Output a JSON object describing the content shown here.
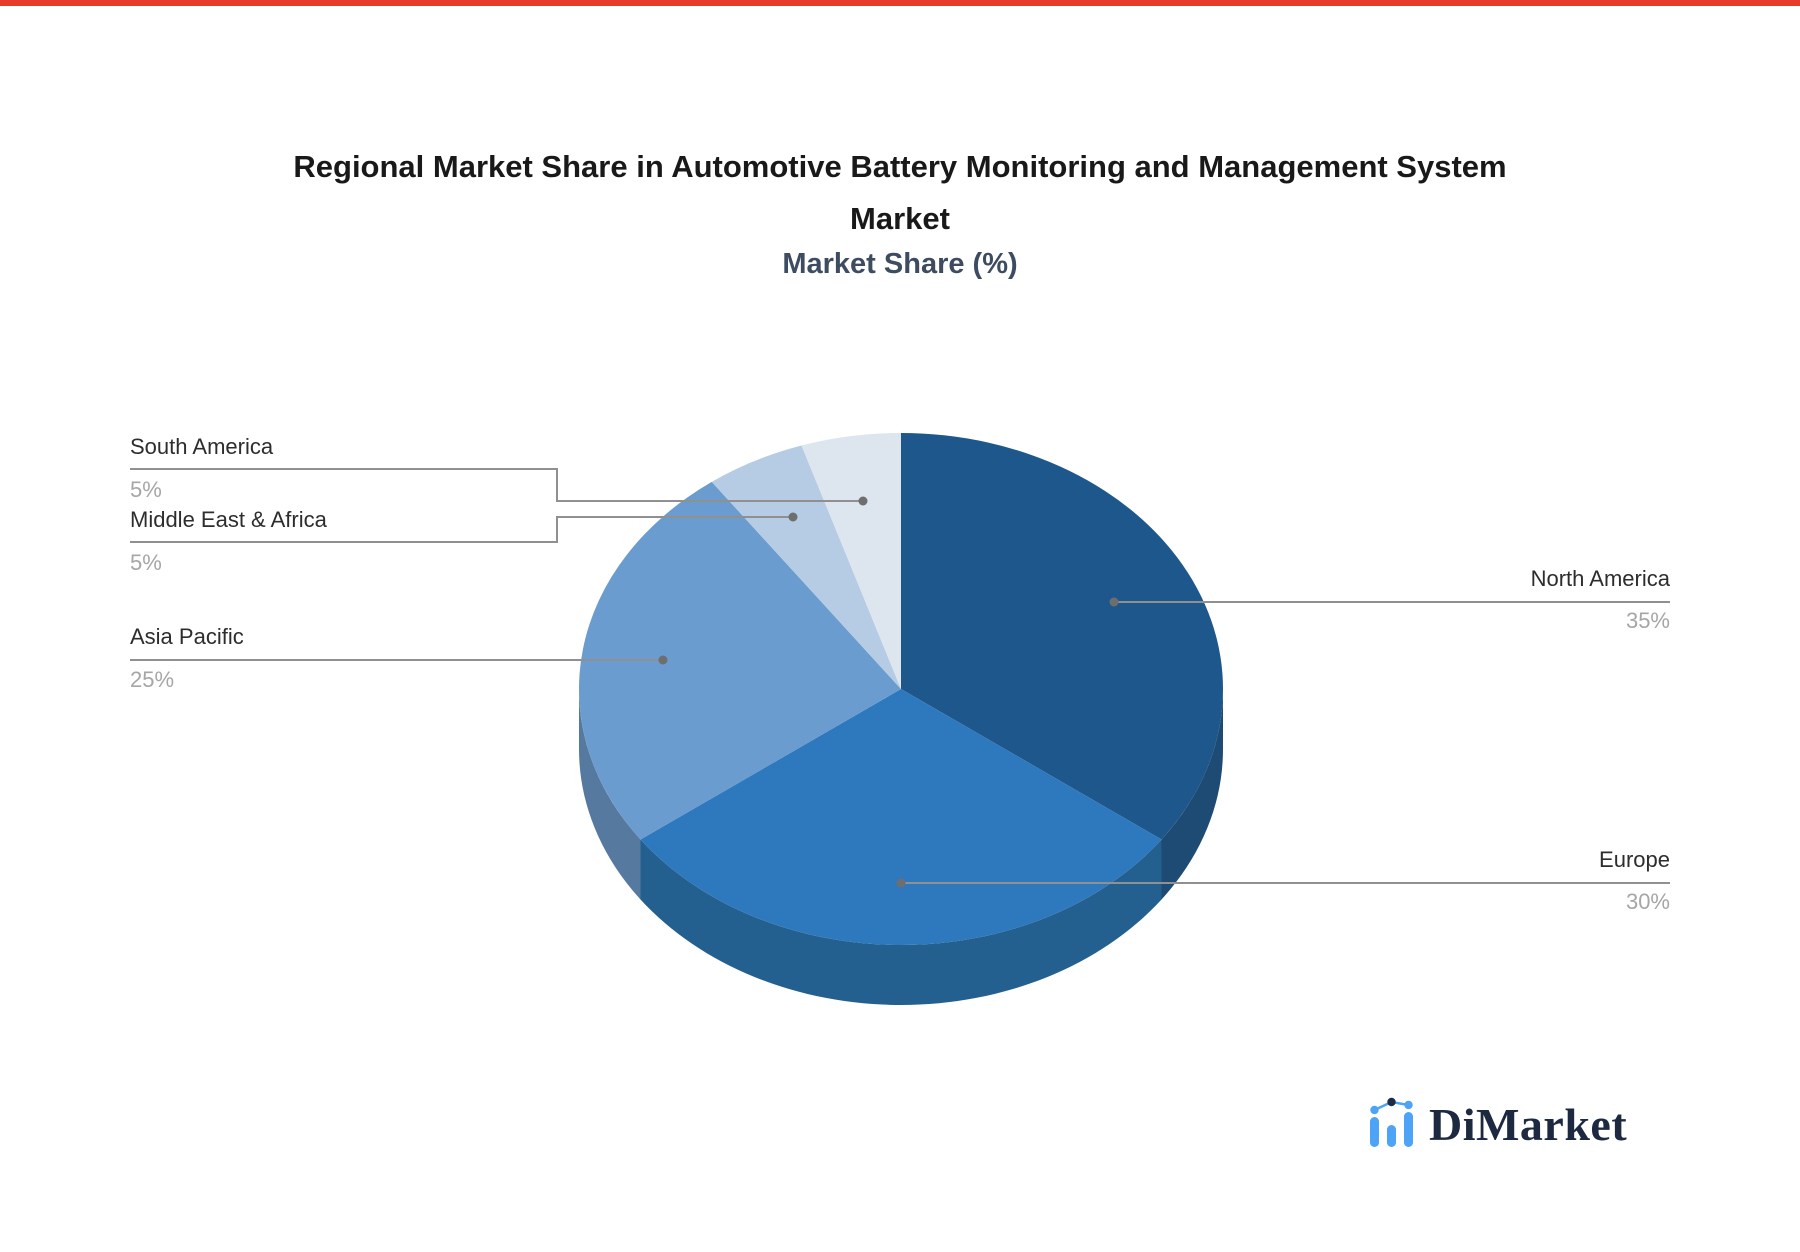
{
  "page": {
    "top_bar_color": "#e73b2c"
  },
  "header": {
    "title_line1": "Regional Market Share in Automotive Battery Monitoring and Management System",
    "title_line2": "Market",
    "subtitle": "Market Share (%)"
  },
  "chart_data": {
    "type": "pie",
    "style": "3d-pie-with-callouts",
    "title": "Regional Market Share in Automotive Battery Monitoring and Management System Market",
    "subtitle": "Market Share (%)",
    "unit": "percent",
    "start_angle_deg": 0,
    "direction": "clockwise",
    "legend_position": "callout-labels",
    "leader_line_color": "#909090",
    "leader_dot_color": "#6e6e6e",
    "slices": [
      {
        "name": "North America",
        "value": 35,
        "value_label": "35%",
        "color": "#1e578b",
        "side_color": "#1d4b73",
        "label_side": "right"
      },
      {
        "name": "Europe",
        "value": 30,
        "value_label": "30%",
        "color": "#2e79bd",
        "side_color": "#24608f",
        "label_side": "right"
      },
      {
        "name": "Asia Pacific",
        "value": 25,
        "value_label": "25%",
        "color": "#6b9ccf",
        "side_color": "#56799f",
        "label_side": "left"
      },
      {
        "name": "Middle East & Africa",
        "value": 5,
        "value_label": "5%",
        "color": "#b5cce4",
        "side_color": "#93aac3",
        "label_side": "left"
      },
      {
        "name": "South America",
        "value": 5,
        "value_label": "5%",
        "color": "#dde5ef",
        "side_color": "#b9c5d4",
        "label_side": "left"
      }
    ]
  },
  "branding": {
    "logo_text": "DiMarket"
  }
}
